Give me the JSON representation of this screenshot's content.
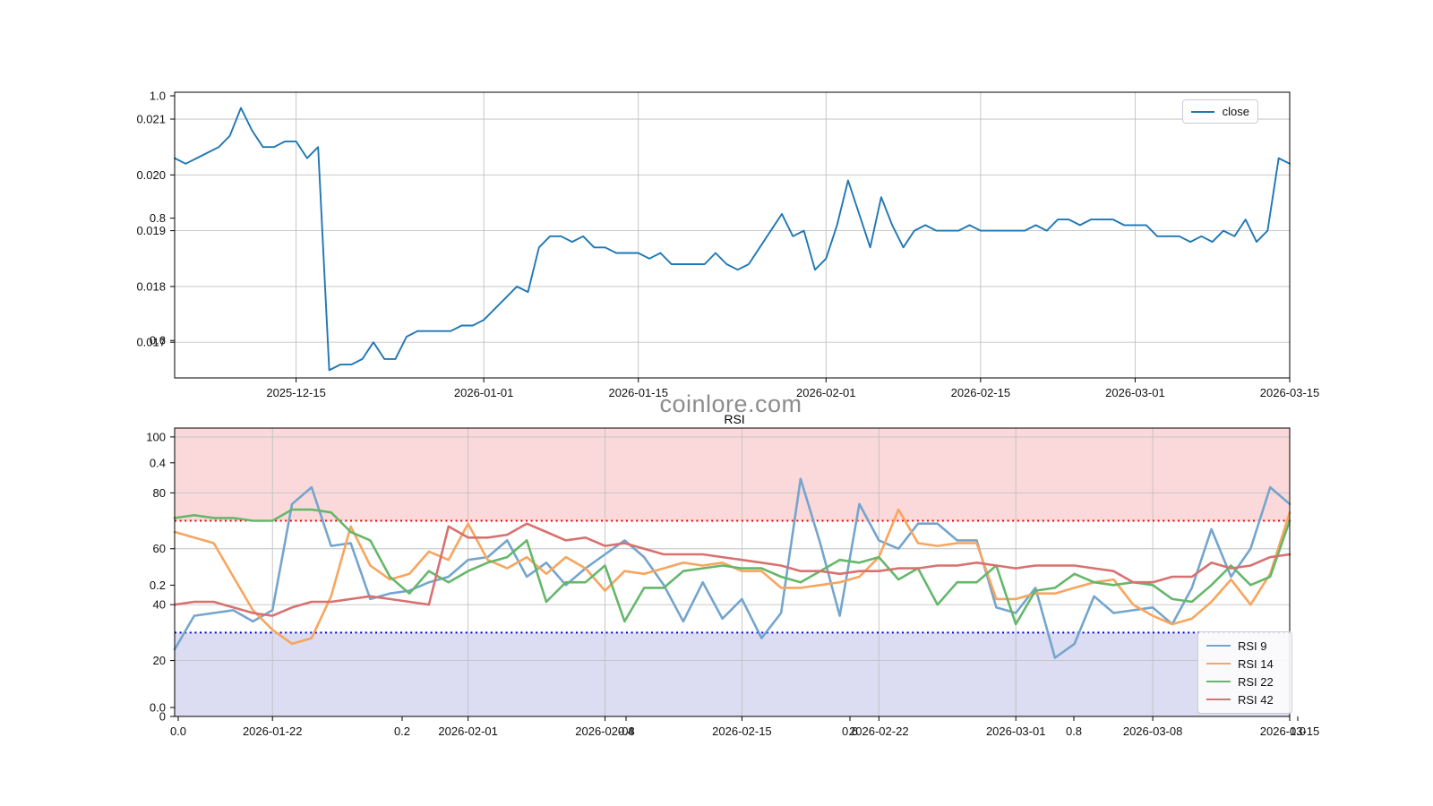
{
  "watermark": "coinlore.com",
  "chart_data": [
    {
      "type": "line",
      "title": "",
      "legend_position": "upper right",
      "grid": true,
      "x_range": [
        "2025-12-04",
        "2026-03-15"
      ],
      "x_tick_labels": [
        "2025-12-15",
        "2026-01-01",
        "2026-01-15",
        "2026-02-01",
        "2026-02-15",
        "2026-03-01",
        "2026-03-15"
      ],
      "y_tick_labels": [
        "0.021",
        "0.020",
        "0.019",
        "0.018",
        "0.017"
      ],
      "ylim": [
        0.01637,
        0.02148
      ],
      "series": [
        {
          "name": "close",
          "color": "#1f77b4",
          "values": [
            0.0203,
            0.0202,
            0.0203,
            0.0204,
            0.0205,
            0.0207,
            0.0212,
            0.0208,
            0.0205,
            0.0205,
            0.0206,
            0.0206,
            0.0203,
            0.0205,
            0.0165,
            0.0166,
            0.0166,
            0.0167,
            0.017,
            0.0167,
            0.0167,
            0.0171,
            0.0172,
            0.0172,
            0.0172,
            0.0172,
            0.0173,
            0.0173,
            0.0174,
            0.0176,
            0.0178,
            0.018,
            0.0179,
            0.0187,
            0.0189,
            0.0189,
            0.0188,
            0.0189,
            0.0187,
            0.0187,
            0.0186,
            0.0186,
            0.0186,
            0.0185,
            0.0186,
            0.0184,
            0.0184,
            0.0184,
            0.0184,
            0.0186,
            0.0184,
            0.0183,
            0.0184,
            0.0187,
            0.019,
            0.0193,
            0.0189,
            0.019,
            0.0183,
            0.0185,
            0.0191,
            0.0199,
            0.0193,
            0.0187,
            0.0196,
            0.0191,
            0.0187,
            0.019,
            0.0191,
            0.019,
            0.019,
            0.019,
            0.0191,
            0.019,
            0.019,
            0.019,
            0.019,
            0.019,
            0.0191,
            0.019,
            0.0192,
            0.0192,
            0.0191,
            0.0192,
            0.0192,
            0.0192,
            0.0191,
            0.0191,
            0.0191,
            0.0189,
            0.0189,
            0.0189,
            0.0188,
            0.0189,
            0.0188,
            0.019,
            0.0189,
            0.0192,
            0.0188,
            0.019,
            0.0203,
            0.0202
          ]
        }
      ]
    },
    {
      "type": "line",
      "title": "RSI",
      "legend_position": "lower right",
      "grid": true,
      "x_range": [
        "2026-01-17",
        "2026-03-15"
      ],
      "x_tick_labels": [
        "2026-01-22",
        "2026-02-01",
        "2026-02-08",
        "2026-02-15",
        "2026-02-22",
        "2026-03-01",
        "2026-03-08",
        "2026-03-15"
      ],
      "y_tick_labels": [
        "0",
        "20",
        "40",
        "60",
        "80",
        "100"
      ],
      "ylim": [
        0,
        104
      ],
      "overbought_level": 70,
      "oversold_level": 30,
      "band_colors": {
        "overbought": "#fbd9da",
        "oversold": "#dcdcf2"
      },
      "threshold_colors": {
        "overbought": "#e60000",
        "oversold": "#0000cd"
      },
      "series": [
        {
          "name": "RSI 9",
          "color": "#74a5cd",
          "values": [
            24,
            36,
            37,
            38,
            34,
            38,
            76,
            82,
            61,
            62,
            42,
            44,
            45,
            48,
            50,
            56,
            57,
            63,
            50,
            55,
            47,
            53,
            58,
            63,
            57,
            47,
            34,
            48,
            35,
            42,
            28,
            37,
            85,
            62,
            36,
            76,
            63,
            60,
            69,
            69,
            63,
            63,
            39,
            37,
            46,
            21,
            26,
            43,
            37,
            38,
            39,
            33,
            46,
            67,
            50,
            60,
            82,
            76
          ]
        },
        {
          "name": "RSI 14",
          "color": "#f8a55e",
          "values": [
            66,
            64,
            62,
            50,
            38,
            31,
            26,
            28,
            43,
            68,
            54,
            49,
            51,
            59,
            56,
            69,
            56,
            53,
            57,
            51,
            57,
            53,
            45,
            52,
            51,
            53,
            55,
            54,
            55,
            52,
            52,
            46,
            46,
            47,
            48,
            50,
            57,
            74,
            62,
            61,
            62,
            62,
            42,
            42,
            44,
            44,
            46,
            48,
            49,
            40,
            36,
            33,
            35,
            41,
            49,
            40,
            51,
            73
          ]
        },
        {
          "name": "RSI 22",
          "color": "#65b76a",
          "values": [
            71,
            72,
            71,
            71,
            70,
            70,
            74,
            74,
            73,
            66,
            63,
            50,
            44,
            52,
            48,
            52,
            55,
            57,
            63,
            41,
            48,
            48,
            54,
            34,
            46,
            46,
            52,
            53,
            54,
            53,
            53,
            50,
            48,
            52,
            56,
            55,
            57,
            49,
            53,
            40,
            48,
            48,
            54,
            33,
            45,
            46,
            51,
            48,
            47,
            48,
            47,
            42,
            41,
            47,
            54,
            47,
            50,
            70
          ]
        },
        {
          "name": "RSI 42",
          "color": "#d8716f",
          "values": [
            40,
            41,
            41,
            39,
            37,
            36,
            39,
            41,
            41,
            42,
            43,
            42,
            41,
            40,
            68,
            64,
            64,
            65,
            69,
            66,
            63,
            64,
            61,
            62,
            60,
            58,
            58,
            58,
            57,
            56,
            55,
            54,
            52,
            52,
            51,
            52,
            52,
            53,
            53,
            54,
            54,
            55,
            54,
            53,
            54,
            54,
            54,
            53,
            52,
            48,
            48,
            50,
            50,
            55,
            53,
            54,
            57,
            58
          ]
        }
      ]
    }
  ],
  "overlay_axis": {
    "x_tick_labels": [
      "0.0",
      "0.2",
      "0.4",
      "0.6",
      "0.8",
      "1.0"
    ],
    "y_tick_labels": [
      "1.0",
      "0.8",
      "0.6",
      "0.4",
      "0.2",
      "0.0"
    ]
  }
}
